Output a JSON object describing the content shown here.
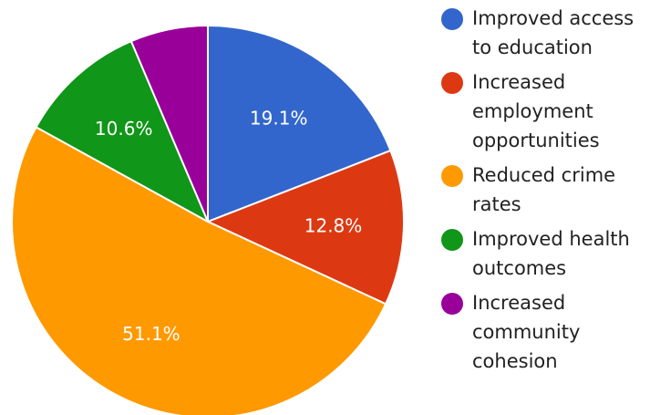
{
  "chart_data": {
    "type": "pie",
    "title": "",
    "legend_position": "right",
    "series": [
      {
        "name": "Improved access\nto education",
        "value": 19.1,
        "label": "19.1%",
        "color": "#3366cc"
      },
      {
        "name": "Increased\nemployment\nopportunities",
        "value": 12.8,
        "label": "12.8%",
        "color": "#dc3912"
      },
      {
        "name": "Reduced crime\nrates",
        "value": 51.1,
        "label": "51.1%",
        "color": "#ff9900"
      },
      {
        "name": "Improved health\noutcomes",
        "value": 10.6,
        "label": "10.6%",
        "color": "#109618"
      },
      {
        "name": "Increased\ncommunity\ncohesion",
        "value": 6.4,
        "label": "",
        "color": "#990099"
      }
    ]
  }
}
